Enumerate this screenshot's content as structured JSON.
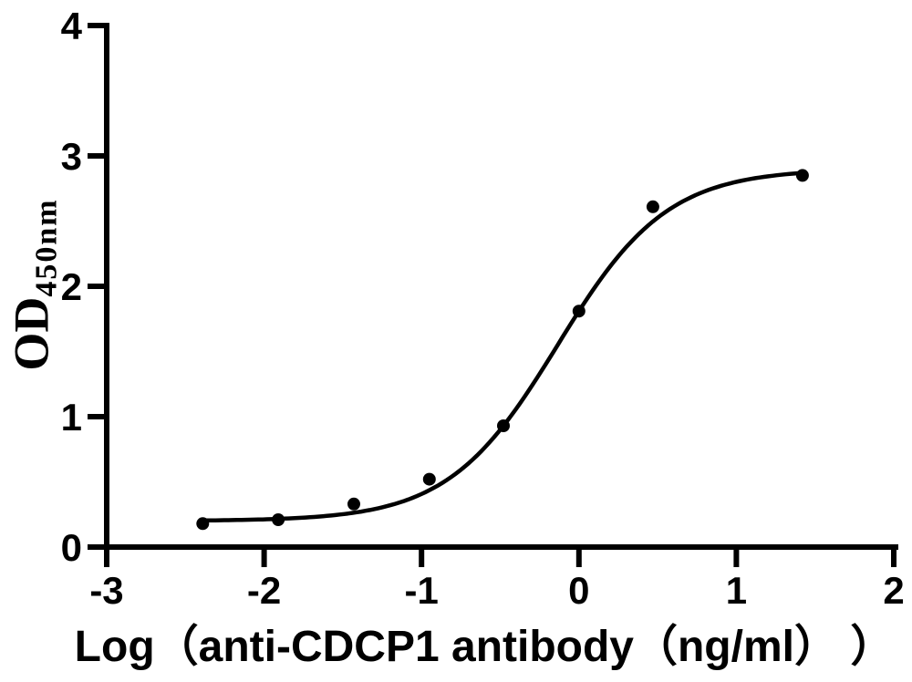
{
  "page": {
    "background": "#ffffff"
  },
  "chart_data": {
    "type": "scatter",
    "title": "",
    "xlabel": "Log（anti-CDCP1 antibody（ng/ml） ）",
    "ylabel": {
      "main": "OD",
      "sub": "450nm"
    },
    "ink_color": "#000000",
    "axes": {
      "xlim": [
        -3,
        2
      ],
      "ylim": [
        0,
        4
      ],
      "x_ticks": [
        "-3",
        "-2",
        "-1",
        "0",
        "1",
        "2"
      ],
      "x_tick_values": [
        -3,
        -2,
        -1,
        0,
        1,
        2
      ],
      "y_ticks": [
        "0",
        "1",
        "2",
        "3",
        "4"
      ],
      "y_tick_values": [
        0,
        1,
        2,
        3,
        4
      ],
      "grid": false,
      "legend": false
    },
    "series": [
      {
        "name": "anti-CDCP1 antibody",
        "marker": "filled-circle",
        "points": [
          {
            "x": -2.39,
            "y": 0.18
          },
          {
            "x": -1.91,
            "y": 0.21
          },
          {
            "x": -1.43,
            "y": 0.33
          },
          {
            "x": -0.95,
            "y": 0.52
          },
          {
            "x": -0.48,
            "y": 0.93
          },
          {
            "x": 0.0,
            "y": 1.81
          },
          {
            "x": 0.47,
            "y": 2.61
          },
          {
            "x": 1.42,
            "y": 2.85
          }
        ]
      }
    ],
    "curve_fit": {
      "model": "four-parameter-logistic",
      "bottom": 0.2,
      "top": 2.9,
      "log_ec50": -0.135,
      "hill_slope": 1.25,
      "x_start": -2.39,
      "x_end": 1.42
    }
  }
}
